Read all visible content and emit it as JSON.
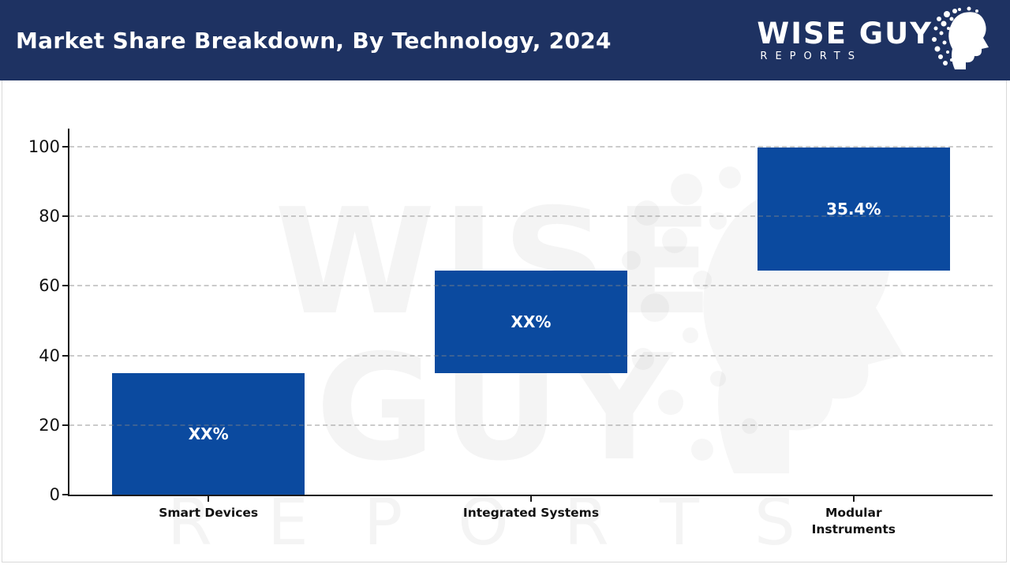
{
  "header": {
    "title": "Market Share Breakdown, By Technology, 2024",
    "logo": {
      "wordmark": "WISE GUY",
      "subtext": "REPORTS"
    }
  },
  "watermark": {
    "line1": "WISE GUY",
    "line2": "REPORTS"
  },
  "colors": {
    "header_bg": "#1e3262",
    "bar": "#0b4a9f",
    "grid": "rgba(130,130,130,0.42)",
    "axis": "#1a1a1a",
    "panel_border": "#d9d9d9",
    "value_label": "#ffffff"
  },
  "chart_data": {
    "type": "bar",
    "subtype": "floating-waterfall",
    "title": "Market Share Breakdown, By Technology, 2024",
    "categories": [
      "Smart Devices",
      "Integrated Systems",
      "Modular\nInstruments"
    ],
    "bars": [
      {
        "category": "Smart Devices",
        "start": 0,
        "end": 35,
        "label": "XX%"
      },
      {
        "category": "Integrated Systems",
        "start": 35,
        "end": 64.3,
        "label": "XX%"
      },
      {
        "category": "Modular Instruments",
        "start": 64.3,
        "end": 99.7,
        "label": "35.4%"
      }
    ],
    "ylim": [
      0,
      105
    ],
    "yticks": [
      0,
      20,
      40,
      60,
      80,
      100
    ],
    "xlabel": "",
    "ylabel": "",
    "grid": "dashed-horizontal",
    "legend": null
  }
}
